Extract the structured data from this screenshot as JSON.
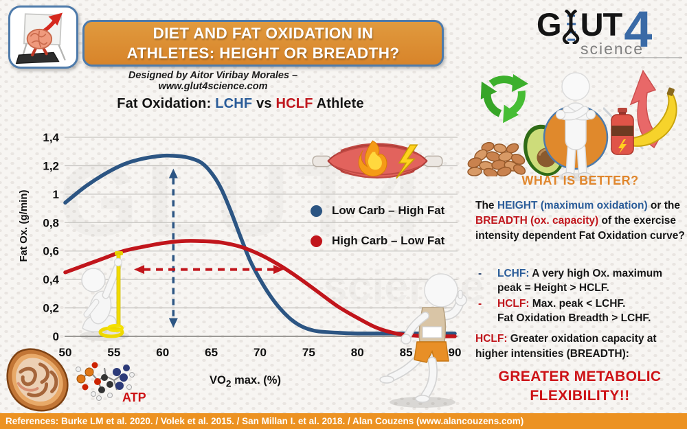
{
  "header": {
    "banner_line1": "DIET AND FAT OXIDATION IN",
    "banner_line2": "ATHLETES: HEIGHT OR BREADTH?",
    "byline": "Designed by Aitor Viribay Morales – www.glut4science.com"
  },
  "brand": {
    "g": "G",
    "ut": "UT",
    "four": "4",
    "science": "science"
  },
  "watermark": {
    "big": "GLUT4",
    "small": "science"
  },
  "chart_data": {
    "type": "line",
    "title_parts": [
      {
        "text": "Fat Oxidation: ",
        "color": "#141414"
      },
      {
        "text": "LCHF",
        "color": "#2a5c99"
      },
      {
        "text": " vs ",
        "color": "#141414"
      },
      {
        "text": "HCLF",
        "color": "#c0161c"
      },
      {
        "text": " Athlete",
        "color": "#141414"
      }
    ],
    "ylabel": "Fat Ox. (g/min)",
    "xlabel_parts": [
      {
        "text": "VO"
      },
      {
        "text": "2",
        "sub": true
      },
      {
        "text": " max. (%)"
      }
    ],
    "xlim": [
      50,
      90
    ],
    "ylim": [
      0,
      1.4
    ],
    "grid": true,
    "legend_position": "center-right",
    "y_ticks": [
      {
        "v": 1.4,
        "label": "1,4"
      },
      {
        "v": 1.2,
        "label": "1,2"
      },
      {
        "v": 1.0,
        "label": "1"
      },
      {
        "v": 0.8,
        "label": "0,8"
      },
      {
        "v": 0.6,
        "label": "0,6"
      },
      {
        "v": 0.4,
        "label": "0,4"
      },
      {
        "v": 0.2,
        "label": "0,2"
      },
      {
        "v": 0,
        "label": "0"
      }
    ],
    "x_ticks": [
      {
        "v": 50,
        "label": "50"
      },
      {
        "v": 55,
        "label": "55"
      },
      {
        "v": 60,
        "label": "60"
      },
      {
        "v": 65,
        "label": "65"
      },
      {
        "v": 70,
        "label": "70"
      },
      {
        "v": 75,
        "label": "75"
      },
      {
        "v": 80,
        "label": "80"
      },
      {
        "v": 85,
        "label": "85"
      },
      {
        "v": 90,
        "label": "90"
      }
    ],
    "series": [
      {
        "name": "Low Carb – High Fat",
        "color": "#2c5583",
        "x": [
          50,
          52,
          54,
          56,
          58,
          60,
          61,
          62,
          63,
          64,
          65,
          66,
          67,
          68,
          69,
          70,
          71,
          72,
          73,
          74,
          75,
          76,
          78,
          80,
          83,
          86,
          90
        ],
        "y": [
          0.94,
          1.05,
          1.14,
          1.21,
          1.25,
          1.27,
          1.27,
          1.265,
          1.25,
          1.22,
          1.15,
          1.04,
          0.88,
          0.7,
          0.53,
          0.4,
          0.29,
          0.2,
          0.13,
          0.08,
          0.05,
          0.035,
          0.025,
          0.02,
          0.02,
          0.02,
          0.02
        ]
      },
      {
        "name": "High Carb – Low Fat",
        "color": "#c1151b",
        "x": [
          50,
          52,
          54,
          56,
          58,
          60,
          62,
          64,
          66,
          68,
          70,
          72,
          74,
          76,
          78,
          80,
          82,
          84,
          86,
          88,
          90
        ],
        "y": [
          0.45,
          0.5,
          0.55,
          0.6,
          0.63,
          0.655,
          0.67,
          0.67,
          0.66,
          0.63,
          0.575,
          0.5,
          0.41,
          0.31,
          0.21,
          0.13,
          0.06,
          0.02,
          0.005,
          0.0,
          0.0
        ]
      }
    ],
    "annotations": [
      {
        "kind": "v-arrow",
        "x": 61.1,
        "y1": 0.07,
        "y2": 1.17,
        "color": "#2c5583"
      },
      {
        "kind": "h-arrow",
        "y": 0.47,
        "x1": 57.2,
        "x2": 72.3,
        "color": "#c1151b"
      }
    ]
  },
  "right_panel": {
    "heading": "WHAT IS BETTER?",
    "heading_color": "#e0862c",
    "paragraph_parts": [
      {
        "text": "The ",
        "color": "#161616"
      },
      {
        "text": "HEIGHT (maximum oxidation)",
        "color": "#2a5c99"
      },
      {
        "text": " or the ",
        "color": "#161616"
      },
      {
        "text": "BREADTH (ox. capacity)",
        "color": "#c0161c"
      },
      {
        "text": " of the exercise intensity dependent Fat Oxidation curve?",
        "color": "#161616"
      }
    ],
    "bullets": [
      {
        "dash": "-",
        "dash_color": "#24406b",
        "label": "LCHF:",
        "label_color": "#2a5c99",
        "line1": "A very high Ox. maximum",
        "line2": "peak = Height > HCLF."
      },
      {
        "dash": "-",
        "dash_color": "#c0161c",
        "label": "HCLF:",
        "label_color": "#c0161c",
        "line1": "Max. peak < LCHF.",
        "line2": "Fat Oxidation Breadth > LCHF."
      }
    ],
    "conclusion_parts": [
      {
        "text": "HCLF:",
        "color": "#c0161c"
      },
      {
        "text": " Greater oxidation capacity at higher intensities (BREADTH):",
        "color": "#161616"
      }
    ],
    "highlight_line1": "GREATER METABOLIC",
    "highlight_line2": "FLEXIBILITY!!",
    "highlight_color": "#cd1216"
  },
  "labels": {
    "atp": "ATP"
  },
  "footer": {
    "references": "References: Burke LM et al. 2020. / Volek et al. 2015. / San Millan I. et al. 2018. / Alan Couzens (www.alancouzens.com)"
  },
  "icons": {
    "brain_treadmill": "brain-on-treadmill-logo",
    "dna": "dna-helix-letter-l",
    "muscle_flame": "burning-muscle-with-lightning",
    "measuring_figure": "figure-measuring-curve-height",
    "runner": "running-athlete-figure",
    "recycle": "green-recycle-arrows",
    "almonds": "almonds-pile",
    "avocado": "avocado-half",
    "thinking_figure": "figure-crossed-arms-orange-circle",
    "energy_gel": "energy-gel-sachet",
    "banana": "banana",
    "up_arrow": "pink-curved-up-arrow",
    "mitochondria": "mitochondria",
    "atp_molecule": "atp-molecule-3d"
  },
  "colors": {
    "banner_orange": "#dc8c2e",
    "banner_border": "#4e7bab",
    "footer_orange": "#ec9222",
    "lchf_blue": "#2c5583",
    "hclf_red": "#c1151b"
  }
}
